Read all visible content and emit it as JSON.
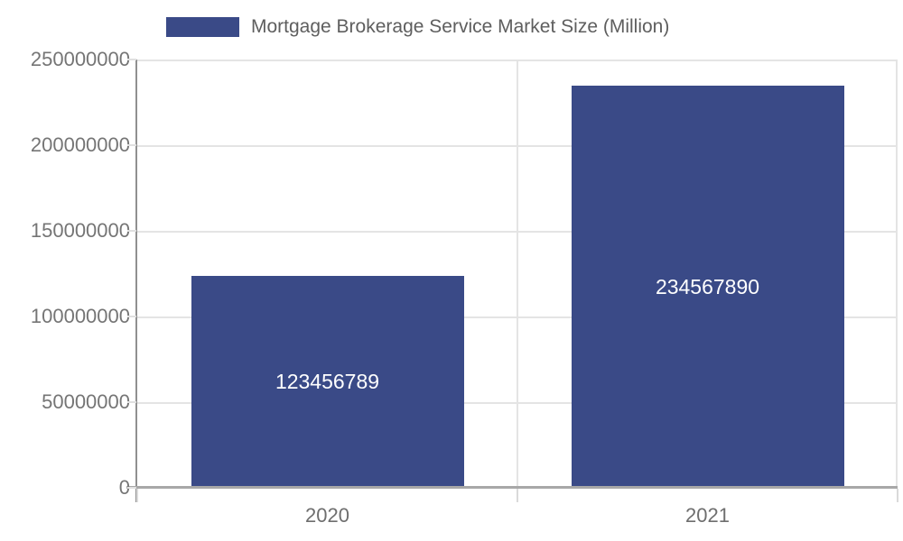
{
  "legend": {
    "label": "Mortgage Brokerage Service Market Size (Million)"
  },
  "chart_data": {
    "type": "bar",
    "title": "Mortgage Brokerage Service Market Size (Million)",
    "categories": [
      "2020",
      "2021"
    ],
    "values": [
      123456789,
      234567890
    ],
    "series": [
      {
        "name": "Mortgage Brokerage Service Market Size (Million)",
        "values": [
          123456789,
          234567890
        ]
      }
    ],
    "data_labels": [
      "123456789",
      "234567890"
    ],
    "xlabel": "",
    "ylabel": "",
    "ylim": [
      0,
      250000000
    ],
    "ytick_interval": 50000000,
    "ytick_labels": [
      "0",
      "50000000",
      "100000000",
      "150000000",
      "200000000",
      "250000000"
    ],
    "grid": true,
    "legend_position": "top",
    "colors": {
      "bar": "#3a4a87",
      "bar_label": "#ffffff",
      "gridline": "#e4e4e4",
      "axis": "#909090",
      "tick_label": "#757575",
      "legend_text": "#5e5e5e",
      "background": "#ffffff"
    }
  }
}
